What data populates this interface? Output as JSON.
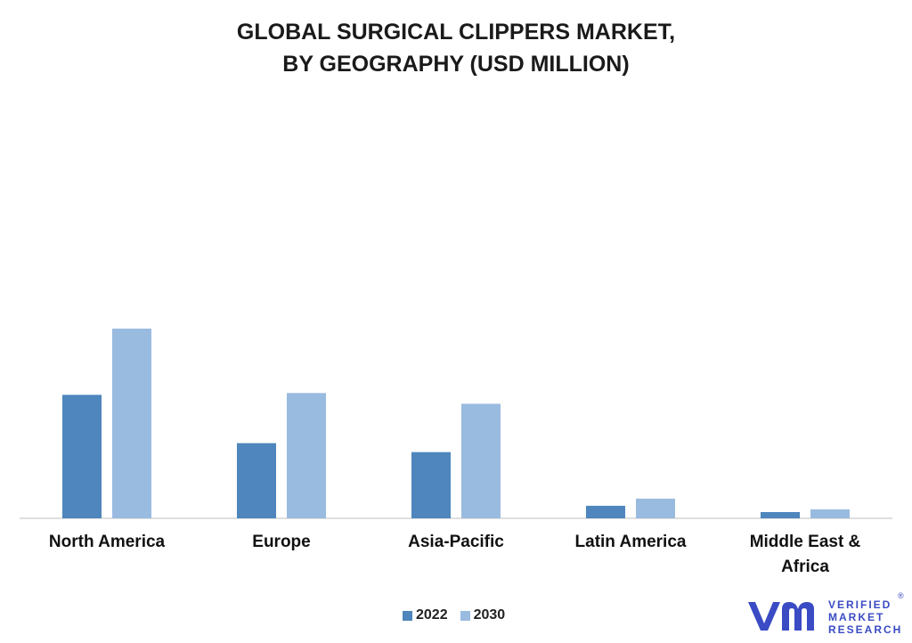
{
  "chart_data": {
    "type": "bar",
    "title_lines": [
      "GLOBAL SURGICAL CLIPPERS MARKET,",
      "BY GEOGRAPHY (USD MILLION)"
    ],
    "categories": [
      [
        "North America"
      ],
      [
        "Europe"
      ],
      [
        "Asia-Pacific"
      ],
      [
        "Latin America"
      ],
      [
        "Middle East &",
        "Africa"
      ]
    ],
    "series": [
      {
        "name": "2022",
        "color": "#4e86bd",
        "values": [
          138,
          84,
          74,
          14,
          7
        ]
      },
      {
        "name": "2030",
        "color": "#9abbe0",
        "values": [
          212,
          140,
          128,
          22,
          10
        ]
      }
    ],
    "ylim": [
      0,
      420
    ],
    "grid": false,
    "legend_position": "bottom"
  },
  "brand": {
    "line1": "VERIFIED",
    "line2": "MARKET",
    "line3": "RESEARCH",
    "reg": "®"
  }
}
